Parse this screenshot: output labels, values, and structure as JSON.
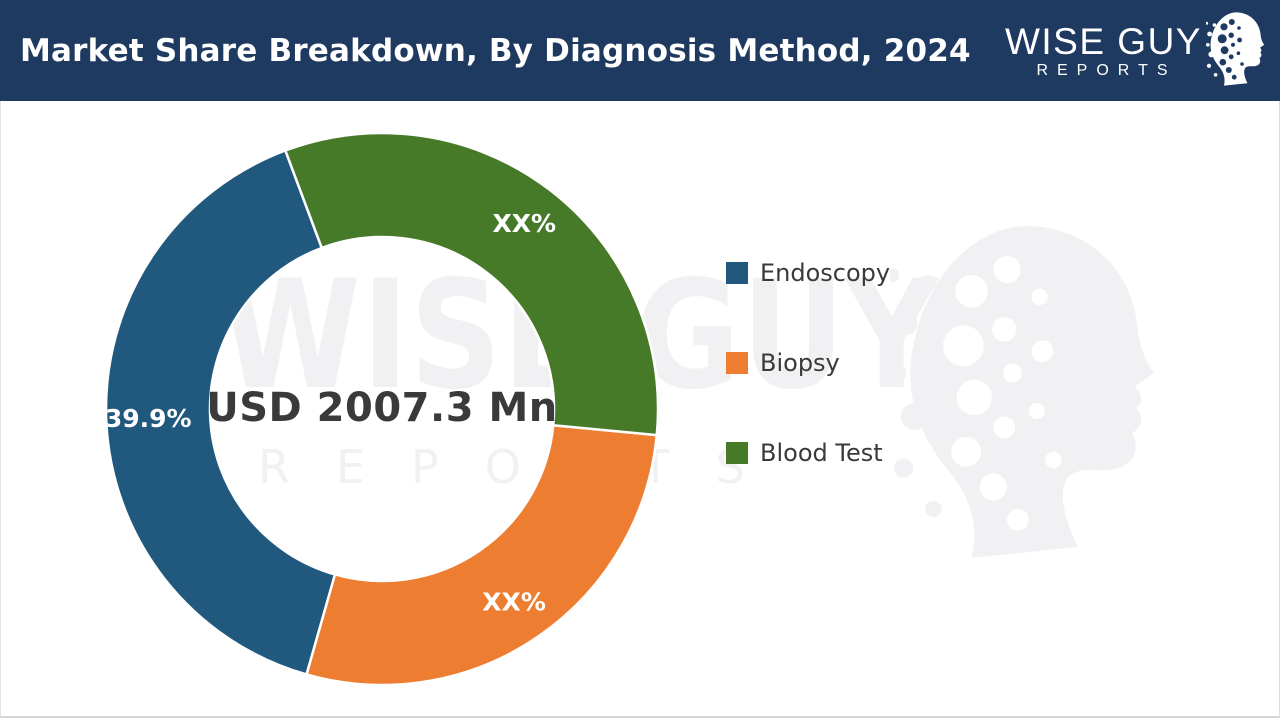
{
  "header": {
    "title": "Market Share Breakdown, By Diagnosis Method, 2024",
    "logo": {
      "line1": "WISE GUY",
      "line2": "REPORTS"
    }
  },
  "watermark": {
    "line1": "WISE GUY",
    "line2": "REPORTS"
  },
  "chart_data": {
    "type": "pie",
    "subtype": "donut",
    "title": "Market Share Breakdown, By Diagnosis Method, 2024",
    "center_label": "USD 2007.3 Mn",
    "unit": "percent share",
    "start_angle_deg": 110.5,
    "direction": "counterclockwise",
    "legend_position": "right",
    "series": [
      {
        "name": "Endoscopy",
        "value_pct": 39.9,
        "display_label": "39.9%",
        "color": "#20587E"
      },
      {
        "name": "Biopsy",
        "value_pct": 27.9,
        "display_label": "XX%",
        "color": "#ED7D31"
      },
      {
        "name": "Blood Test",
        "value_pct": 32.2,
        "display_label": "XX%",
        "color": "#477A28"
      }
    ]
  },
  "theme": {
    "header_bg": "#1F3A61",
    "title_color": "#FFFFFF",
    "slice_label_color": "#FFFFFF",
    "center_text_color": "#3A3A3A",
    "legend_text_color": "#3A3A3A",
    "watermark_color": "#F1F1F3",
    "separator_color": "#FFFFFF",
    "bottom_border_color": "#D5D5D5"
  }
}
